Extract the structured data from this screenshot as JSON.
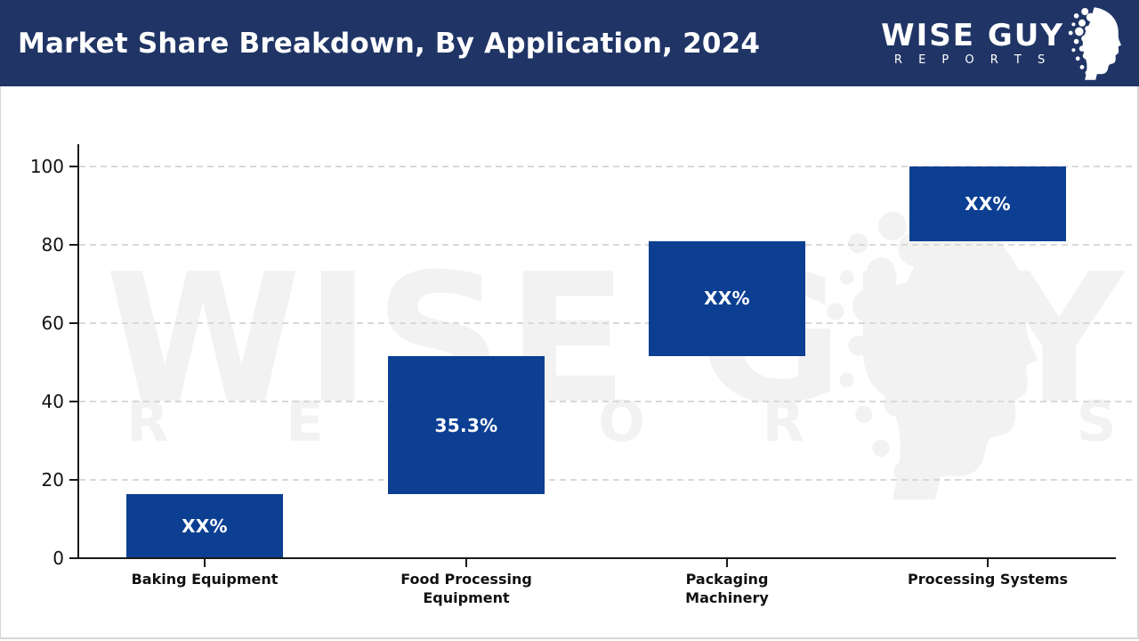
{
  "header": {
    "title": "Market Share Breakdown, By Application, 2024",
    "logo": {
      "line1": "WISE GUY",
      "line2": "R E P O R T S",
      "icon": "wise-guy-face-icon"
    }
  },
  "watermark": {
    "line1": "WISE GUY",
    "line2": "R E P O R T S",
    "icon": "wise-guy-face-icon"
  },
  "chart_data": {
    "type": "bar",
    "variant": "floating-waterfall-segments",
    "title": "Market Share Breakdown, By Application, 2024",
    "categories": [
      "Baking Equipment",
      "Food Processing\nEquipment",
      "Packaging\nMachinery",
      "Processing Systems"
    ],
    "segments": [
      {
        "category": "Baking Equipment",
        "start": 0,
        "end": 16.3,
        "value": 16.3,
        "label": "XX%"
      },
      {
        "category": "Food Processing Equipment",
        "start": 16.3,
        "end": 51.6,
        "value": 35.3,
        "label": "35.3%"
      },
      {
        "category": "Packaging Machinery",
        "start": 51.6,
        "end": 80.9,
        "value": 29.3,
        "label": "XX%"
      },
      {
        "category": "Processing Systems",
        "start": 80.9,
        "end": 100,
        "value": 19.1,
        "label": "XX%"
      }
    ],
    "yticks": [
      0,
      20,
      40,
      60,
      80,
      100
    ],
    "ylim": [
      0,
      100
    ],
    "xlabel": "",
    "ylabel": "",
    "grid": "horizontal-dashed",
    "legend": "none",
    "bar_color": "#0c3f92",
    "bar_label_color": "#ffffff"
  },
  "colors": {
    "header_bg": "#203566",
    "bar": "#0c3f92",
    "grid": "#d9d9d9",
    "axis": "#1a1a1a",
    "watermark": "#f2f2f2",
    "border": "#d6d6d6"
  }
}
